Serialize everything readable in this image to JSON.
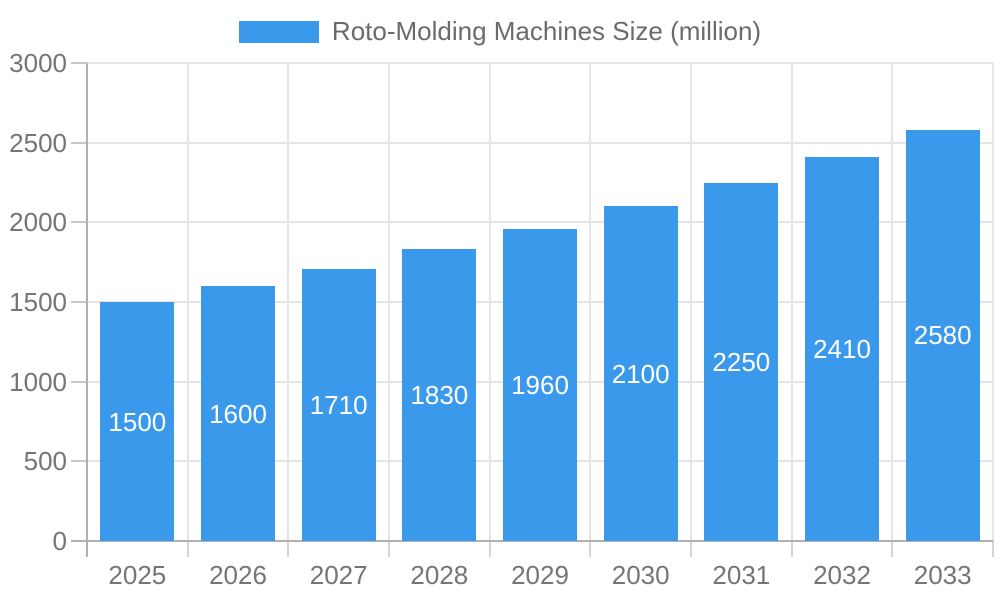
{
  "legend": {
    "label": "Roto-Molding Machines Size (million)"
  },
  "chart_data": {
    "type": "bar",
    "title": "Roto-Molding Machines Size (million)",
    "series_name": "Roto-Molding Machines Size (million)",
    "categories": [
      "2025",
      "2026",
      "2027",
      "2028",
      "2029",
      "2030",
      "2031",
      "2032",
      "2033"
    ],
    "values": [
      1500,
      1600,
      1710,
      1830,
      1960,
      2100,
      2250,
      2410,
      2580
    ],
    "bar_value_labels": [
      "1500",
      "1600",
      "1710",
      "1830",
      "1960",
      "2100",
      "2250",
      "2410",
      "2580"
    ],
    "xlabel": "",
    "ylabel": "",
    "ylim": [
      0,
      3000
    ],
    "yticks": [
      0,
      500,
      1000,
      1500,
      2000,
      2500,
      3000
    ],
    "grid": true,
    "legend_position": "top",
    "colors": {
      "bar": "#3B99EC",
      "bar_label": "#FFFFFF",
      "axis_text": "#757575",
      "legend_text": "#6B6B6B",
      "grid": "#E5E5E5",
      "axis_line": "#B1B1B1",
      "tick_left": "#C9C9C9",
      "tick_bottom": "#D4D4D4",
      "background": "#FFFFFF"
    }
  }
}
